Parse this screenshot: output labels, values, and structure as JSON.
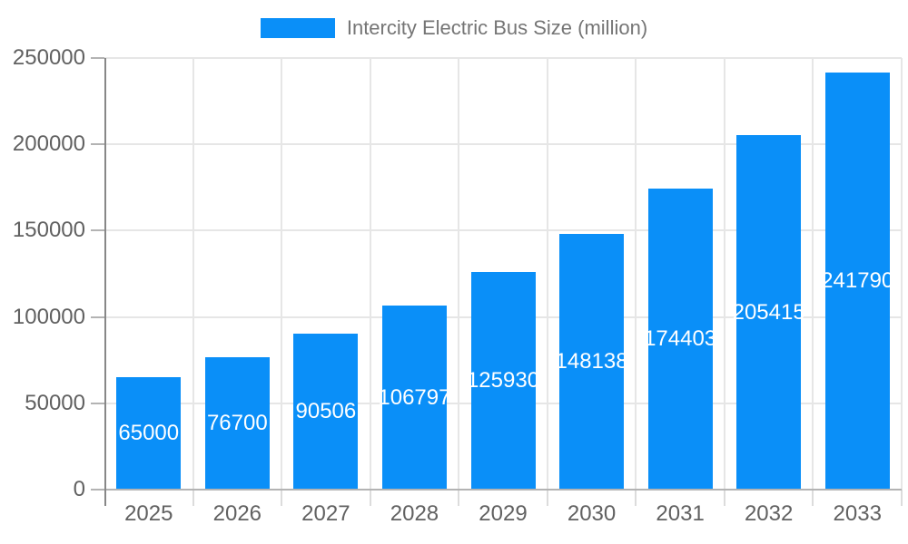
{
  "legend": {
    "label": "Intercity Electric Bus Size (million)"
  },
  "colors": {
    "bar": "#0a8ff8",
    "value_label": "#ffffff",
    "grid_line": "#e6e6e6",
    "y_axis_line": "#878787",
    "baseline": "#b3b3b3",
    "tick_text": "#616161",
    "legend_text": "#757575",
    "background": "#ffffff"
  },
  "chart_data": {
    "type": "bar",
    "title": "Intercity Electric Bus Size (million)",
    "series_name": "Intercity Electric Bus Size (million)",
    "categories": [
      "2025",
      "2026",
      "2027",
      "2028",
      "2029",
      "2030",
      "2031",
      "2032",
      "2033"
    ],
    "values": [
      65000,
      76700,
      90506,
      106797,
      125930,
      148138,
      174403,
      205415,
      241790
    ],
    "value_labels": [
      "65000",
      "76700",
      "90506",
      "106797",
      "125930",
      "148138",
      "174403",
      "205415",
      "241790"
    ],
    "xlabel": "",
    "ylabel": "",
    "ylim": [
      0,
      250000
    ],
    "yticks": [
      0,
      50000,
      100000,
      150000,
      200000,
      250000
    ],
    "ytick_labels": [
      "0",
      "50000",
      "100000",
      "150000",
      "200000",
      "250000"
    ],
    "grid": true,
    "legend_position": "top",
    "value_label_position": "inside-center"
  }
}
